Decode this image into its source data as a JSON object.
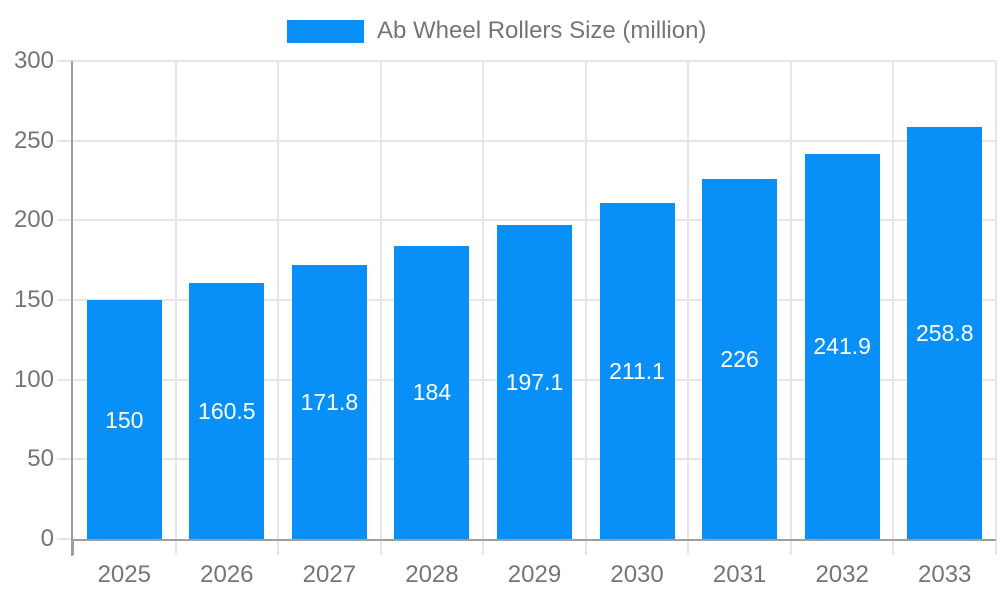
{
  "chart_data": {
    "type": "bar",
    "title": "Ab Wheel Rollers Size (million)",
    "categories": [
      "2025",
      "2026",
      "2027",
      "2028",
      "2029",
      "2030",
      "2031",
      "2032",
      "2033"
    ],
    "values": [
      150,
      160.5,
      171.8,
      184,
      197.1,
      211.1,
      226,
      241.9,
      258.8
    ],
    "series": [
      {
        "name": "Ab Wheel Rollers Size (million)",
        "values": [
          150,
          160.5,
          171.8,
          184,
          197.1,
          211.1,
          226,
          241.9,
          258.8
        ]
      }
    ],
    "xlabel": "",
    "ylabel": "",
    "ylim": [
      0,
      300
    ],
    "yticks": [
      0,
      50,
      100,
      150,
      200,
      250,
      300
    ],
    "grid": true,
    "legend_position": "top-center",
    "value_labels_position": "inside-center",
    "colors": {
      "bar": "#0890f8",
      "grid": "#e6e6e6",
      "axis": "#9e9e9e",
      "tick_label": "#757575",
      "legend_label": "#757575",
      "bar_label": "#ffffff",
      "background": "#ffffff"
    }
  }
}
